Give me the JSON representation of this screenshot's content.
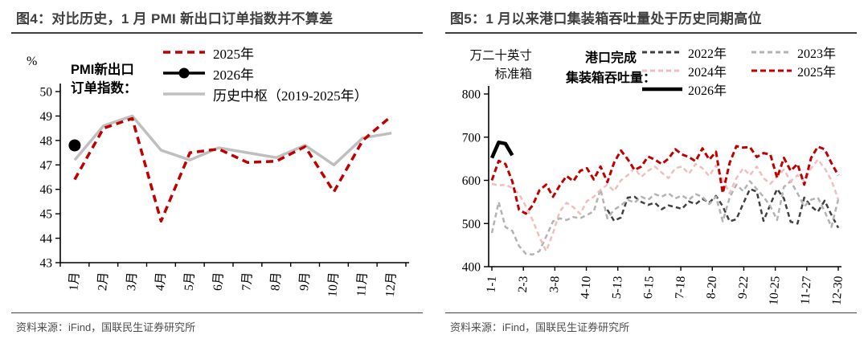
{
  "page": {
    "background": "#ffffff"
  },
  "chart_data": [
    {
      "type": "line",
      "title": "图4：对比历史，1 月 PMI 新出口订单指数并不算差",
      "unit": "%",
      "group_label_lines": [
        "PMI新出口",
        "订单指数："
      ],
      "categories": [
        "1月",
        "2月",
        "3月",
        "4月",
        "5月",
        "6月",
        "7月",
        "8月",
        "9月",
        "10月",
        "11月",
        "12月"
      ],
      "ylim": [
        43,
        50
      ],
      "yticks": [
        50,
        49,
        48,
        47,
        46,
        45,
        44,
        43
      ],
      "grid": false,
      "legend_position": "top-center",
      "draw_order": [
        2,
        0,
        1
      ],
      "series": [
        {
          "name": "2025年",
          "color": "#c00000",
          "dash": "9 6",
          "width": 3.5,
          "marker": false,
          "values": [
            46.4,
            48.5,
            48.9,
            44.7,
            47.5,
            47.65,
            47.1,
            47.15,
            47.75,
            45.9,
            48.0,
            49.0
          ]
        },
        {
          "name": "2026年",
          "color": "#000000",
          "dash": "",
          "width": 3.5,
          "marker": true,
          "values": [
            47.8,
            null,
            null,
            null,
            null,
            null,
            null,
            null,
            null,
            null,
            null,
            null
          ]
        },
        {
          "name": "历史中枢（2019-2025年）",
          "color": "#bfbfbf",
          "dash": "",
          "width": 3.5,
          "marker": false,
          "values": [
            47.2,
            48.6,
            49.0,
            47.6,
            47.2,
            47.7,
            47.5,
            47.3,
            47.8,
            47.0,
            48.1,
            48.3
          ]
        }
      ],
      "source": "资料来源：iFind，国联民生证券研究所"
    },
    {
      "type": "line",
      "title": "图5：1 月以来港口集装箱吞吐量处于历史同期高位",
      "unit_lines": [
        "万二十英寸",
        "标准箱"
      ],
      "group_label_lines": [
        "港口完成",
        "集装箱吞吐量："
      ],
      "x_tick_labels": [
        "1-1",
        "2-3",
        "3-8",
        "4-10",
        "5-13",
        "6-15",
        "7-18",
        "8-20",
        "9-22",
        "10-25",
        "11-27",
        "12-30"
      ],
      "ylim": [
        400,
        800
      ],
      "yticks": [
        800,
        700,
        600,
        500,
        400
      ],
      "grid": false,
      "legend_position": "top-right",
      "draw_order": [
        0,
        1,
        2,
        3,
        4
      ],
      "series": [
        {
          "name": "2022年",
          "color": "#404040",
          "dash": "6 4",
          "width": 2.5,
          "marker": false,
          "values": [
            null,
            null,
            null,
            null,
            null,
            null,
            null,
            null,
            null,
            null,
            null,
            null,
            null,
            null,
            null,
            null,
            null,
            532,
            506,
            514,
            560,
            562,
            550,
            543,
            548,
            533,
            542,
            538,
            534,
            551,
            545,
            557,
            548,
            564,
            540,
            505,
            510,
            546,
            580,
            574,
            506,
            544,
            580,
            558,
            504,
            500,
            560,
            540,
            527,
            553,
            520,
            490
          ]
        },
        {
          "name": "2023年",
          "color": "#b3b3b3",
          "dash": "6 4",
          "width": 2.5,
          "marker": false,
          "values": [
            478,
            550,
            492,
            483,
            448,
            430,
            428,
            436,
            470,
            505,
            512,
            508,
            515,
            512,
            520,
            528,
            580,
            512,
            532,
            542,
            555,
            548,
            562,
            555,
            568,
            562,
            570,
            558,
            565,
            555,
            568,
            562,
            545,
            562,
            505,
            560,
            590,
            575,
            598,
            580,
            562,
            540,
            508,
            585,
            598,
            570,
            540,
            555,
            560,
            528,
            492,
            556
          ]
        },
        {
          "name": "2024年",
          "color": "#f1bebe",
          "dash": "6 4",
          "width": 2.5,
          "marker": false,
          "values": [
            592,
            588,
            590,
            582,
            568,
            540,
            508,
            468,
            436,
            478,
            528,
            548,
            538,
            522,
            552,
            562,
            578,
            590,
            575,
            600,
            612,
            628,
            608,
            622,
            632,
            618,
            605,
            628,
            632,
            615,
            638,
            628,
            610,
            635,
            602,
            570,
            605,
            628,
            612,
            632,
            605,
            592,
            608,
            625,
            598,
            612,
            598,
            628,
            648,
            628,
            600,
            556
          ]
        },
        {
          "name": "2025年",
          "color": "#c00000",
          "dash": "7 4",
          "width": 3,
          "marker": false,
          "values": [
            600,
            645,
            638,
            598,
            532,
            523,
            542,
            577,
            590,
            562,
            588,
            610,
            598,
            622,
            628,
            602,
            632,
            596,
            641,
            669,
            649,
            624,
            632,
            655,
            648,
            638,
            650,
            672,
            660,
            654,
            644,
            674,
            648,
            666,
            570,
            640,
            679,
            676,
            677,
            654,
            663,
            660,
            606,
            652,
            622,
            638,
            590,
            652,
            678,
            672,
            640,
            612
          ]
        },
        {
          "name": "2026年",
          "color": "#000000",
          "dash": "",
          "width": 4.5,
          "marker": false,
          "values": [
            652,
            688,
            685,
            658,
            null,
            null,
            null,
            null,
            null,
            null,
            null,
            null,
            null,
            null,
            null,
            null,
            null,
            null,
            null,
            null,
            null,
            null,
            null,
            null,
            null,
            null,
            null,
            null,
            null,
            null,
            null,
            null,
            null,
            null,
            null,
            null,
            null,
            null,
            null,
            null,
            null,
            null,
            null,
            null,
            null,
            null,
            null,
            null,
            null,
            null,
            null,
            null
          ]
        }
      ],
      "source": "资料来源：iFind，国联民生证券研究所"
    }
  ]
}
